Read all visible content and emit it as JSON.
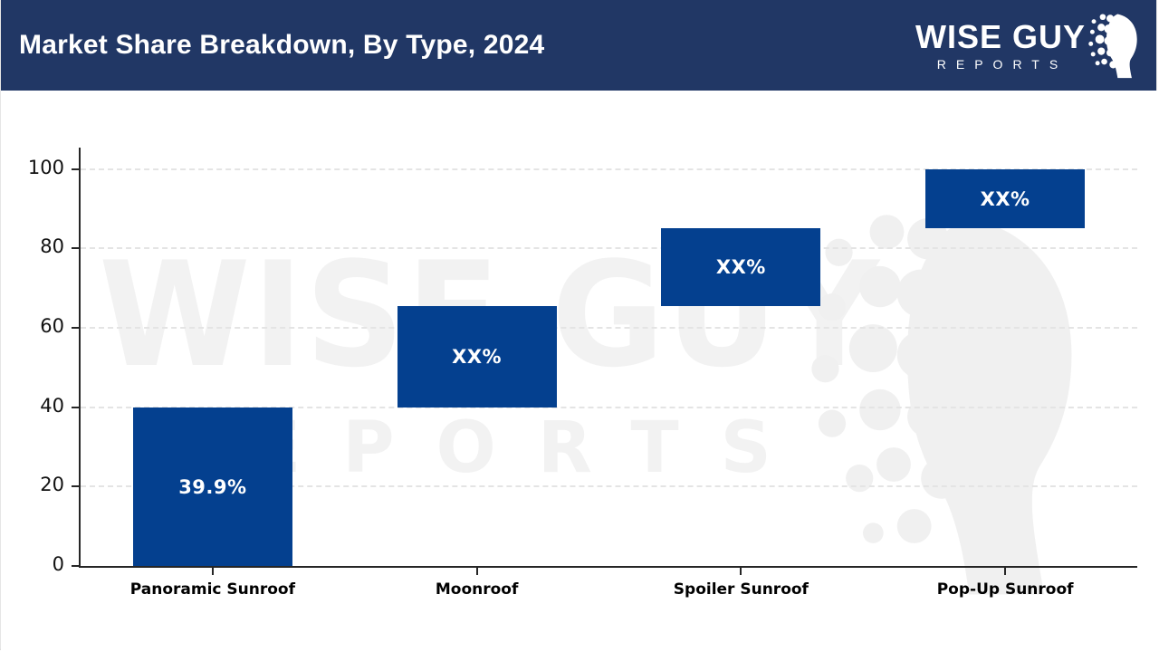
{
  "header": {
    "title": "Market Share Breakdown, By Type, 2024",
    "logo": {
      "line1": "WISE GUY",
      "line2": "REPORTS"
    }
  },
  "watermark": {
    "line1": "WISE GUY",
    "line2": "REPORTS"
  },
  "colors": {
    "header_bg": "#213765",
    "bar": "#04408F",
    "grid": "#e4e4e4",
    "axis": "#262626",
    "watermark": "#f2f2f2",
    "border": "#d9d9d9"
  },
  "icons": {
    "logo_face": "face-dots-icon",
    "watermark_face": "watermark-face-dots-icon"
  },
  "chart_data": {
    "type": "bar",
    "subtype": "waterfall-breakdown",
    "title": "Market Share Breakdown, By Type, 2024",
    "categories": [
      "Panoramic Sunroof",
      "Moonroof",
      "Spoiler Sunroof",
      "Pop-Up Sunroof"
    ],
    "segments": [
      {
        "category": "Panoramic Sunroof",
        "start": 0,
        "end": 39.9,
        "label": "39.9%"
      },
      {
        "category": "Moonroof",
        "start": 39.9,
        "end": 65.5,
        "label": "XX%"
      },
      {
        "category": "Spoiler Sunroof",
        "start": 65.5,
        "end": 85.0,
        "label": "XX%"
      },
      {
        "category": "Pop-Up Sunroof",
        "start": 85.0,
        "end": 100.0,
        "label": "XX%"
      }
    ],
    "y_ticks": [
      0,
      20,
      40,
      60,
      80,
      100
    ],
    "ylim": [
      0,
      105
    ],
    "xlabel": "",
    "ylabel": "",
    "grid": "horizontal-dashed",
    "legend": "none",
    "bar_label_color": "#ffffff"
  }
}
